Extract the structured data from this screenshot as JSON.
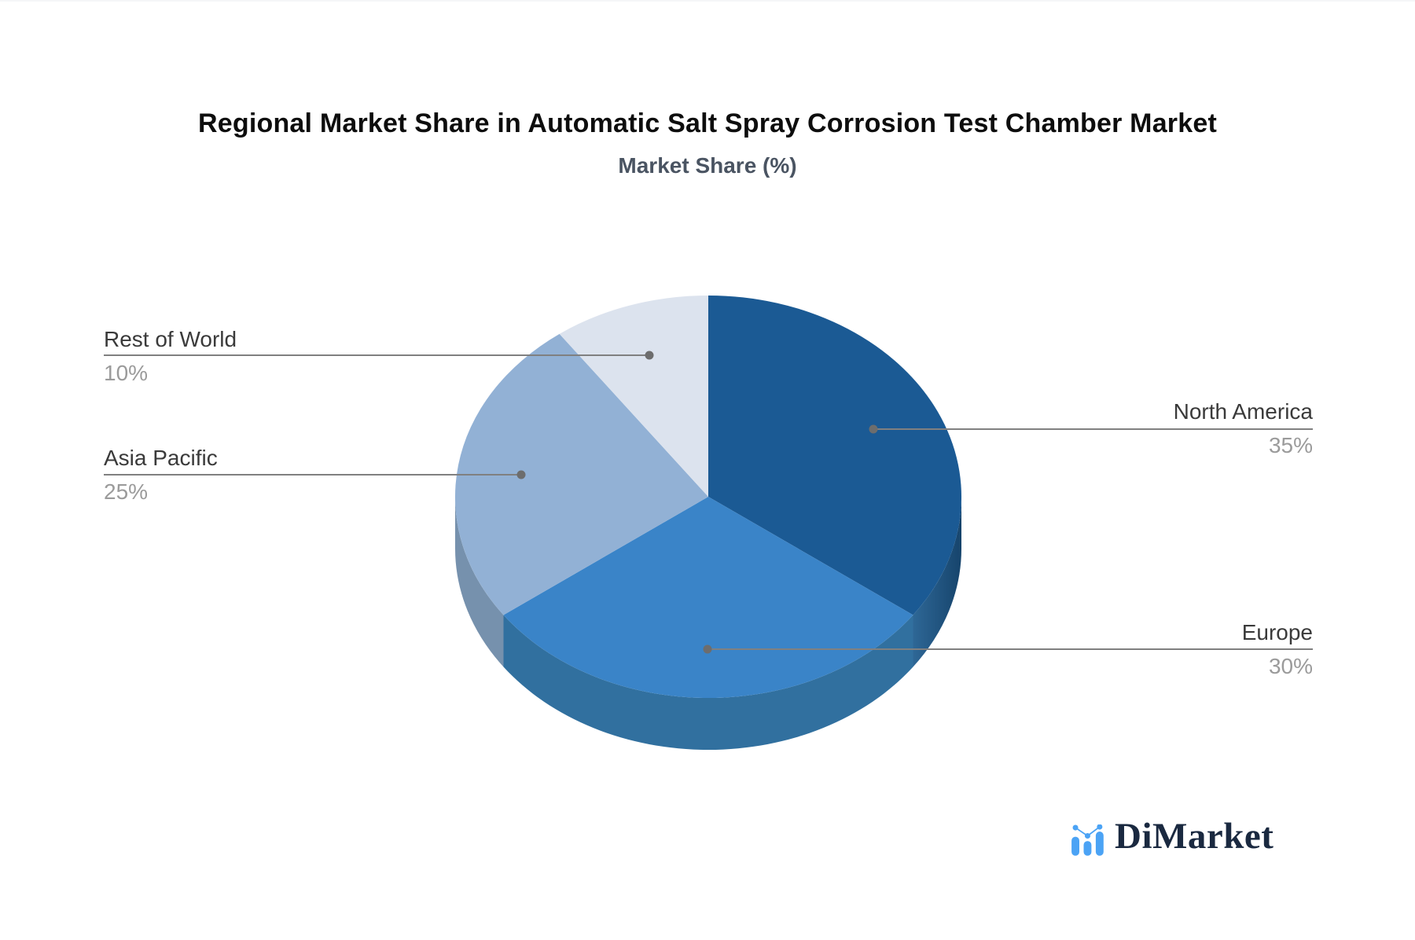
{
  "page": {
    "background": "#ffffff"
  },
  "chart_data": {
    "type": "pie",
    "pie_style": "3d",
    "title": "Regional Market Share in Automatic Salt Spray Corrosion Test Chamber Market",
    "subtitle": "Market Share (%)",
    "unit": "%",
    "start_angle_deg": 0,
    "direction": "clockwise",
    "legend_position": "none",
    "leader_line_color": "#808080",
    "leader_dot_color": "#6d6d6d",
    "slices": [
      {
        "label": "North America",
        "value": 35,
        "display": "35%",
        "color": "#1b5a94",
        "side_color": "#2e6796",
        "side_color2": "#16446c",
        "label_side": "right"
      },
      {
        "label": "Europe",
        "value": 30,
        "display": "30%",
        "color": "#3a84c8",
        "side_color": "#31709f",
        "label_side": "right"
      },
      {
        "label": "Asia Pacific",
        "value": 25,
        "display": "25%",
        "color": "#92b1d5",
        "side_color": "#7691ad",
        "label_side": "left"
      },
      {
        "label": "Rest of World",
        "value": 10,
        "display": "10%",
        "color": "#dce3ee",
        "label_side": "left"
      }
    ]
  },
  "logo": {
    "text": "DiMarket",
    "icon": "bar-line-chart-icon",
    "icon_color": "#4ba3f5",
    "text_color": "#1a2940"
  }
}
